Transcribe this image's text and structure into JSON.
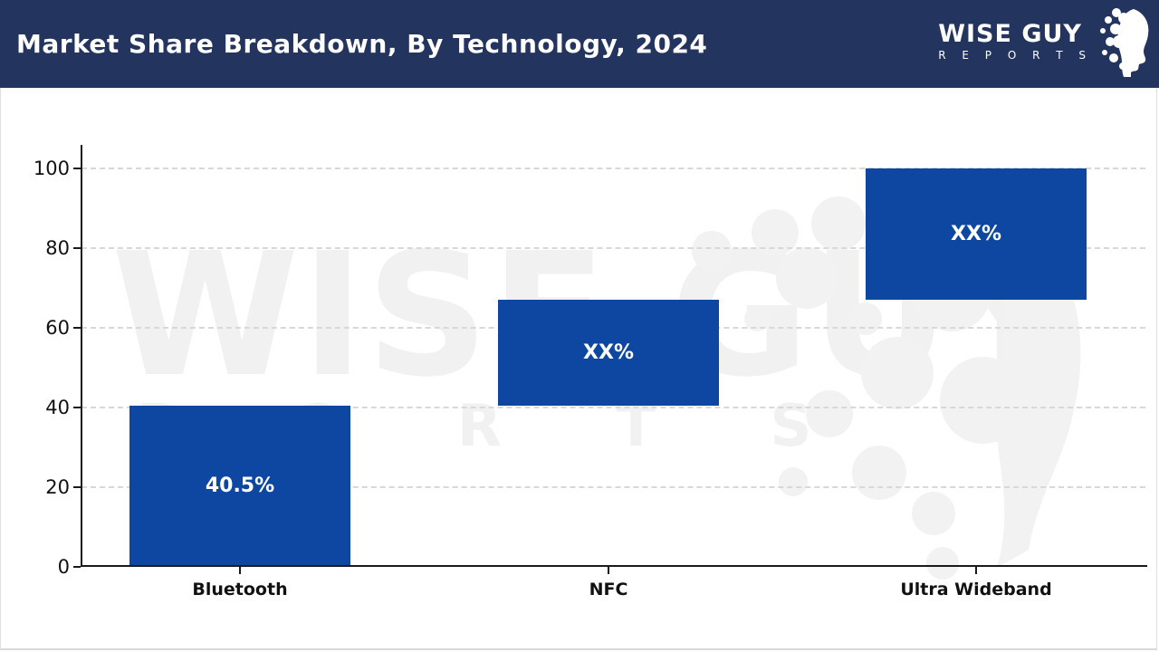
{
  "header": {
    "title": "Market Share Breakdown, By Technology, 2024",
    "bg_color": "#23345e",
    "logo": {
      "line1": "WISE GUY",
      "line2": "R E P O R T S"
    }
  },
  "watermark": {
    "line1": "WISE GUY",
    "line2": "P O R T S"
  },
  "chart_data": {
    "type": "bar",
    "variant": "floating-stacked-percentage-bars",
    "title": "Market Share Breakdown, By Technology, 2024",
    "categories": [
      "Bluetooth",
      "NFC",
      "Ultra Wideband"
    ],
    "series": [
      {
        "name": "Market Share",
        "segments": [
          {
            "category": "Bluetooth",
            "start": 0,
            "end": 40.5,
            "label": "40.5%"
          },
          {
            "category": "NFC",
            "start": 40.5,
            "end": 67,
            "label": "XX%"
          },
          {
            "category": "Ultra Wideband",
            "start": 67,
            "end": 100,
            "label": "XX%"
          }
        ]
      }
    ],
    "xlabel": "",
    "ylabel": "",
    "ylim": [
      0,
      100
    ],
    "yticks": [
      0,
      20,
      40,
      60,
      80,
      100
    ],
    "grid": "horizontal-dashed",
    "legend": "none",
    "bar_color": "#0d47a1",
    "bar_label_color": "#ffffff"
  }
}
